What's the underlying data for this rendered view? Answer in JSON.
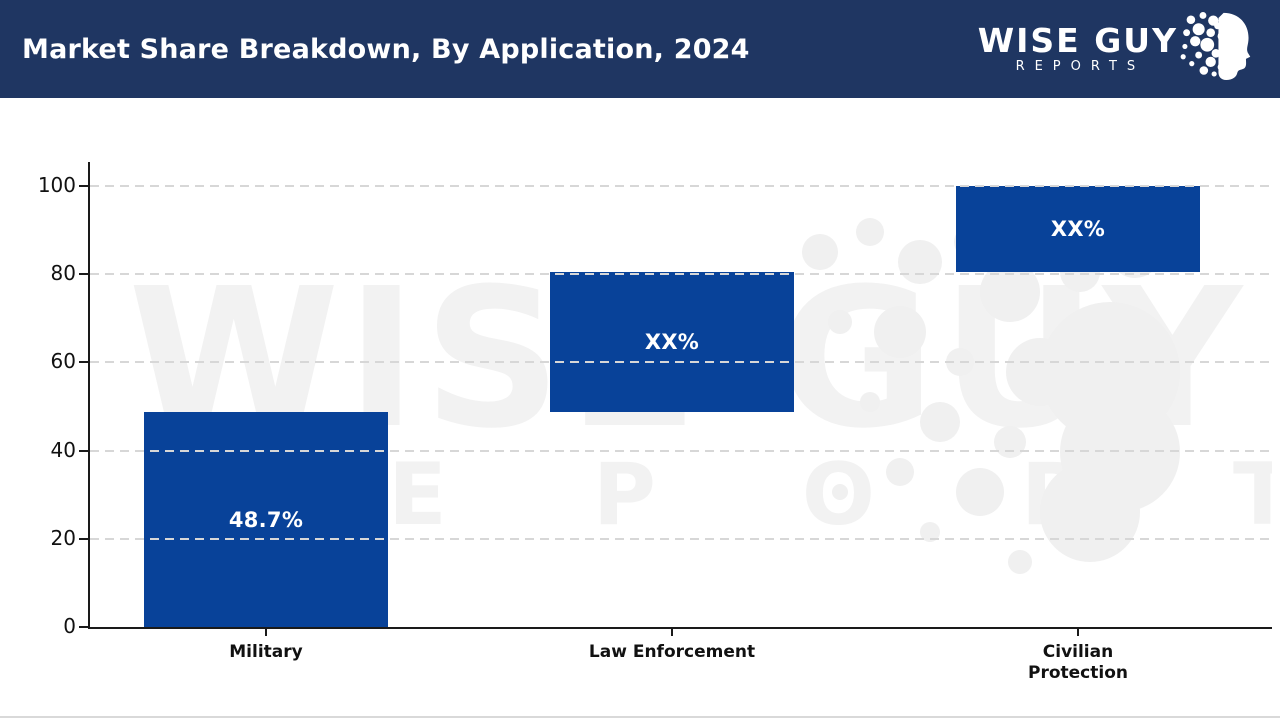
{
  "header": {
    "title": "Market Share Breakdown, By Application, 2024",
    "logo": {
      "line1": "WISE GUY",
      "line2": "REPORTS"
    }
  },
  "watermark": {
    "line1": "WISE GUY",
    "line2": "R E P O R T S"
  },
  "colors": {
    "header_bg": "#1f3662",
    "bar": "#084299",
    "grid": "#d7d7d7",
    "axis": "#1a1a1a",
    "watermark": "#f2f2f2",
    "bar_label_text": "#ffffff"
  },
  "chart_data": {
    "type": "bar",
    "subtype": "waterfall",
    "title": "Market Share Breakdown, By Application, 2024",
    "categories": [
      "Military",
      "Law Enforcement",
      "Civilian\nProtection"
    ],
    "segments": [
      {
        "category": "Military",
        "start": 0,
        "end": 48.7,
        "label": "48.7%"
      },
      {
        "category": "Law Enforcement",
        "start": 48.7,
        "end": 80.6,
        "label": "XX%"
      },
      {
        "category": "Civilian Protection",
        "start": 80.6,
        "end": 100,
        "label": "XX%"
      }
    ],
    "xlabel": "",
    "ylabel": "",
    "ylim": [
      0,
      100
    ],
    "yticks": [
      0,
      20,
      40,
      60,
      80,
      100
    ],
    "grid": "horizontal-dashed",
    "legend": "none"
  }
}
